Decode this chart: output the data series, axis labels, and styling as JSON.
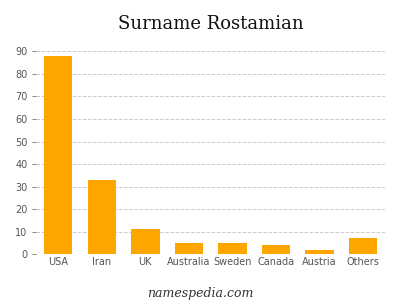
{
  "title": "Surname Rostamian",
  "categories": [
    "USA",
    "Iran",
    "UK",
    "Australia",
    "Sweden",
    "Canada",
    "Austria",
    "Others"
  ],
  "values": [
    88,
    33,
    11,
    5,
    5,
    4,
    2,
    7
  ],
  "bar_color": "#FFA500",
  "ylim": [
    0,
    95
  ],
  "yticks": [
    0,
    10,
    20,
    30,
    40,
    50,
    60,
    70,
    80,
    90
  ],
  "grid_color": "#cccccc",
  "background_color": "#ffffff",
  "title_fontsize": 13,
  "tick_fontsize": 7,
  "footer_text": "namespedia.com",
  "footer_fontsize": 9
}
